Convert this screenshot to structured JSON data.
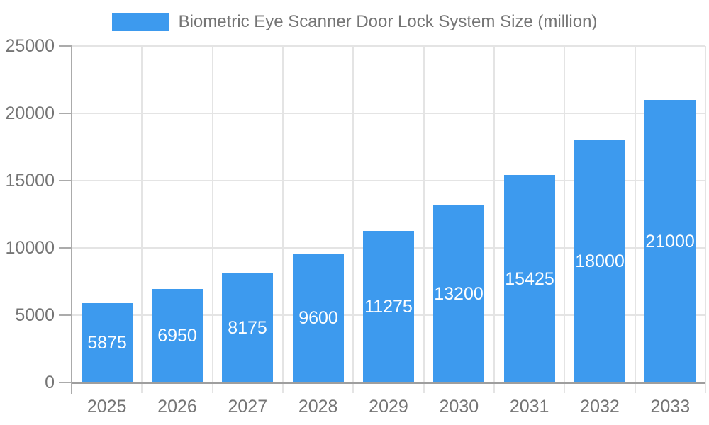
{
  "chart_data": {
    "type": "bar",
    "title": "Biometric Eye Scanner Door Lock System Size (million)",
    "legend": {
      "label": "Biometric Eye Scanner Door Lock System Size (million)",
      "position": "top"
    },
    "categories": [
      "2025",
      "2026",
      "2027",
      "2028",
      "2029",
      "2030",
      "2031",
      "2032",
      "2033"
    ],
    "values": [
      5875,
      6950,
      8175,
      9600,
      11275,
      13200,
      15425,
      18000,
      21000
    ],
    "xlabel": "",
    "ylabel": "",
    "ylim": [
      0,
      25000
    ],
    "y_ticks": [
      0,
      5000,
      10000,
      15000,
      20000,
      25000
    ],
    "grid": true,
    "bar_value_labels": true,
    "colors": {
      "bar": "#3D9AEE",
      "grid": "#E4E4E4",
      "axis": "#ABABAB",
      "baseline": "#9E9E9E",
      "text": "#757575",
      "bar_label": "#FFFFFF"
    }
  }
}
